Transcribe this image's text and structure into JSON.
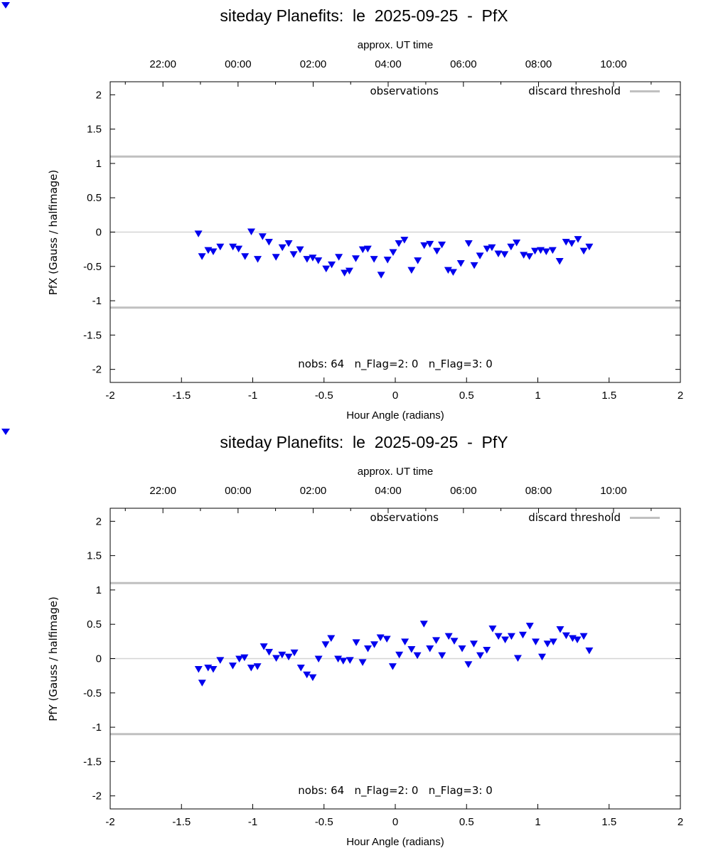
{
  "colors": {
    "observations": "#0000ee",
    "discard_threshold_line": "#c0c0c0",
    "zero_line": "#d4d4d4",
    "frame": "#000000",
    "text": "#000000",
    "background": "#ffffff"
  },
  "chart_data": [
    {
      "type": "scatter",
      "title": "siteday Planefits:  le  2025-09-25  -  PfX",
      "top_axis_label": "approx. UT time",
      "xlabel": "Hour Angle (radians)",
      "ylabel": "PfX (Gauss / halfimage)",
      "annotation": "nobs: 64   n_Flag=2: 0   n_Flag=3: 0",
      "legend": {
        "observations_label": "observations",
        "threshold_label": "discard threshold"
      },
      "xlim": [
        -2,
        2
      ],
      "ylim": [
        -2.19,
        2.19
      ],
      "x_ticks": [
        -2,
        -1.5,
        -1,
        -0.5,
        0,
        0.5,
        1,
        1.5,
        2
      ],
      "y_ticks": [
        -2,
        -1.5,
        -1,
        -0.5,
        0,
        0.5,
        1,
        1.5,
        2
      ],
      "time_ticks": [
        {
          "label": "22:00",
          "x": -1.63
        },
        {
          "label": "00:00",
          "x": -1.103
        },
        {
          "label": "02:00",
          "x": -0.576
        },
        {
          "label": "04:00",
          "x": -0.05
        },
        {
          "label": "06:00",
          "x": 0.478
        },
        {
          "label": "08:00",
          "x": 1.005
        },
        {
          "label": "10:00",
          "x": 1.531
        }
      ],
      "time_minor_ticks_x": [
        -1.894,
        -1.367,
        -0.84,
        -0.313,
        0.214,
        0.741,
        1.268,
        1.795
      ],
      "discard_threshold": 1.1,
      "zero_line_y": 0,
      "series": [
        {
          "name": "observations",
          "marker": "triangle-down",
          "x": [
            -1.381,
            -1.356,
            -1.312,
            -1.277,
            -1.228,
            -1.139,
            -1.099,
            -1.054,
            -1.01,
            -0.965,
            -0.931,
            -0.886,
            -0.837,
            -0.792,
            -0.748,
            -0.713,
            -0.668,
            -0.619,
            -0.579,
            -0.54,
            -0.485,
            -0.446,
            -0.396,
            -0.356,
            -0.322,
            -0.277,
            -0.228,
            -0.193,
            -0.149,
            -0.099,
            -0.054,
            -0.015,
            0.025,
            0.064,
            0.114,
            0.158,
            0.203,
            0.243,
            0.292,
            0.327,
            0.371,
            0.406,
            0.46,
            0.515,
            0.554,
            0.594,
            0.644,
            0.678,
            0.723,
            0.767,
            0.812,
            0.851,
            0.901,
            0.941,
            0.98,
            1.02,
            1.059,
            1.104,
            1.153,
            1.198,
            1.238,
            1.282,
            1.322,
            1.361
          ],
          "y": [
            -0.02,
            -0.35,
            -0.26,
            -0.28,
            -0.21,
            -0.21,
            -0.24,
            -0.35,
            0.01,
            -0.39,
            -0.06,
            -0.14,
            -0.36,
            -0.22,
            -0.16,
            -0.32,
            -0.25,
            -0.39,
            -0.37,
            -0.41,
            -0.53,
            -0.47,
            -0.36,
            -0.59,
            -0.56,
            -0.38,
            -0.25,
            -0.24,
            -0.39,
            -0.62,
            -0.4,
            -0.29,
            -0.16,
            -0.11,
            -0.55,
            -0.41,
            -0.19,
            -0.17,
            -0.27,
            -0.18,
            -0.55,
            -0.58,
            -0.45,
            -0.16,
            -0.48,
            -0.34,
            -0.24,
            -0.22,
            -0.31,
            -0.32,
            -0.21,
            -0.15,
            -0.33,
            -0.35,
            -0.27,
            -0.26,
            -0.28,
            -0.26,
            -0.42,
            -0.14,
            -0.16,
            -0.1,
            -0.27,
            -0.21
          ]
        }
      ]
    },
    {
      "type": "scatter",
      "title": "siteday Planefits:  le  2025-09-25  -  PfY",
      "top_axis_label": "approx. UT time",
      "xlabel": "Hour Angle (radians)",
      "ylabel": "PfY (Gauss / halfimage)",
      "annotation": "nobs: 64   n_Flag=2: 0   n_Flag=3: 0",
      "legend": {
        "observations_label": "observations",
        "threshold_label": "discard threshold"
      },
      "xlim": [
        -2,
        2
      ],
      "ylim": [
        -2.19,
        2.19
      ],
      "x_ticks": [
        -2,
        -1.5,
        -1,
        -0.5,
        0,
        0.5,
        1,
        1.5,
        2
      ],
      "y_ticks": [
        -2,
        -1.5,
        -1,
        -0.5,
        0,
        0.5,
        1,
        1.5,
        2
      ],
      "time_ticks": [
        {
          "label": "22:00",
          "x": -1.63
        },
        {
          "label": "00:00",
          "x": -1.103
        },
        {
          "label": "02:00",
          "x": -0.576
        },
        {
          "label": "04:00",
          "x": -0.05
        },
        {
          "label": "06:00",
          "x": 0.478
        },
        {
          "label": "08:00",
          "x": 1.005
        },
        {
          "label": "10:00",
          "x": 1.531
        }
      ],
      "time_minor_ticks_x": [
        -1.894,
        -1.367,
        -0.84,
        -0.313,
        0.214,
        0.741,
        1.268,
        1.795
      ],
      "discard_threshold": 1.1,
      "zero_line_y": 0,
      "series": [
        {
          "name": "observations",
          "marker": "triangle-down",
          "x": [
            -1.38,
            -1.355,
            -1.313,
            -1.277,
            -1.228,
            -1.14,
            -1.094,
            -1.058,
            -1.011,
            -0.967,
            -0.922,
            -0.885,
            -0.835,
            -0.794,
            -0.748,
            -0.708,
            -0.662,
            -0.62,
            -0.579,
            -0.538,
            -0.489,
            -0.45,
            -0.401,
            -0.365,
            -0.318,
            -0.274,
            -0.229,
            -0.192,
            -0.147,
            -0.104,
            -0.059,
            -0.018,
            0.028,
            0.068,
            0.114,
            0.155,
            0.201,
            0.243,
            0.287,
            0.328,
            0.375,
            0.414,
            0.469,
            0.513,
            0.551,
            0.596,
            0.642,
            0.683,
            0.724,
            0.771,
            0.815,
            0.86,
            0.895,
            0.944,
            0.985,
            1.03,
            1.068,
            1.109,
            1.157,
            1.199,
            1.244,
            1.277,
            1.322,
            1.361
          ],
          "y": [
            -0.15,
            -0.35,
            -0.13,
            -0.15,
            -0.02,
            -0.1,
            0.0,
            0.02,
            -0.13,
            -0.11,
            0.18,
            0.1,
            0.01,
            0.06,
            0.03,
            0.09,
            -0.13,
            -0.23,
            -0.27,
            0.0,
            0.21,
            0.3,
            0.0,
            -0.03,
            -0.02,
            0.24,
            -0.05,
            0.15,
            0.21,
            0.31,
            0.29,
            -0.11,
            0.06,
            0.25,
            0.14,
            0.05,
            0.51,
            0.15,
            0.27,
            0.05,
            0.33,
            0.26,
            0.15,
            -0.08,
            0.22,
            0.05,
            0.13,
            0.44,
            0.33,
            0.28,
            0.33,
            0.01,
            0.35,
            0.48,
            0.25,
            0.03,
            0.22,
            0.25,
            0.43,
            0.34,
            0.3,
            0.28,
            0.33,
            0.12
          ]
        }
      ]
    }
  ]
}
